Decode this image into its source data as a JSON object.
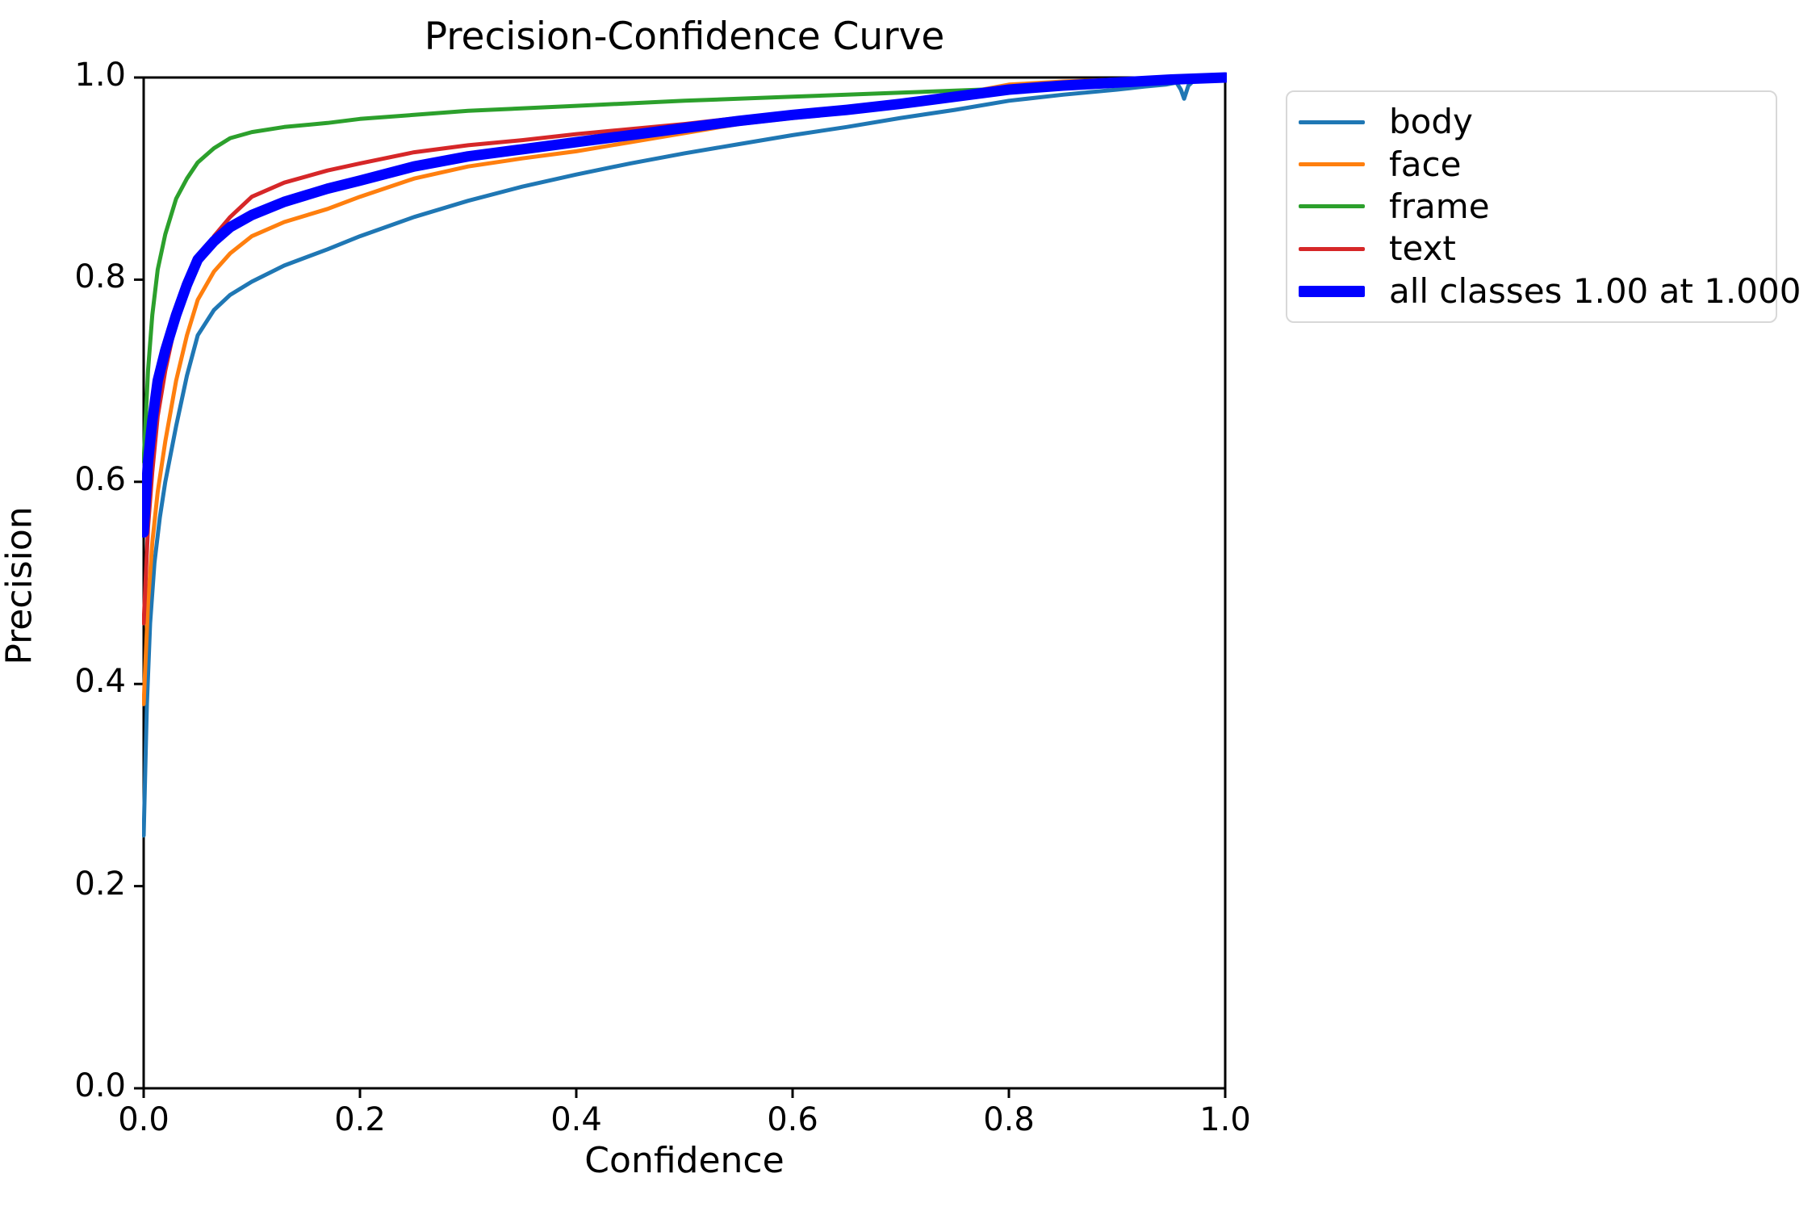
{
  "chart_data": {
    "type": "line",
    "title": "Precision-Confidence Curve",
    "xlabel": "Confidence",
    "ylabel": "Precision",
    "xlim": [
      0,
      1
    ],
    "ylim": [
      0,
      1
    ],
    "grid": false,
    "legend_position": "outside upper right",
    "x_ticks": [
      "0.0",
      "0.2",
      "0.4",
      "0.6",
      "0.8",
      "1.0"
    ],
    "y_ticks": [
      "0.0",
      "0.2",
      "0.4",
      "0.6",
      "0.8",
      "1.0"
    ],
    "series": [
      {
        "name": "body",
        "legend_label": "body",
        "color": "#1f77b4",
        "line_weight": "thin",
        "points": [
          [
            0.0,
            0.25
          ],
          [
            0.003,
            0.38
          ],
          [
            0.006,
            0.46
          ],
          [
            0.01,
            0.52
          ],
          [
            0.015,
            0.565
          ],
          [
            0.02,
            0.6
          ],
          [
            0.03,
            0.655
          ],
          [
            0.04,
            0.705
          ],
          [
            0.05,
            0.745
          ],
          [
            0.065,
            0.77
          ],
          [
            0.08,
            0.785
          ],
          [
            0.1,
            0.798
          ],
          [
            0.13,
            0.814
          ],
          [
            0.17,
            0.83
          ],
          [
            0.2,
            0.843
          ],
          [
            0.25,
            0.862
          ],
          [
            0.3,
            0.878
          ],
          [
            0.35,
            0.892
          ],
          [
            0.4,
            0.904
          ],
          [
            0.45,
            0.915
          ],
          [
            0.5,
            0.925
          ],
          [
            0.55,
            0.934
          ],
          [
            0.6,
            0.943
          ],
          [
            0.65,
            0.951
          ],
          [
            0.7,
            0.96
          ],
          [
            0.75,
            0.968
          ],
          [
            0.8,
            0.977
          ],
          [
            0.85,
            0.983
          ],
          [
            0.9,
            0.988
          ],
          [
            0.925,
            0.991
          ],
          [
            0.945,
            0.993
          ],
          [
            0.955,
            0.995
          ],
          [
            0.959,
            0.988
          ],
          [
            0.962,
            0.979
          ],
          [
            0.966,
            0.992
          ],
          [
            0.97,
            0.996
          ],
          [
            0.98,
            0.998
          ],
          [
            0.99,
            0.999
          ],
          [
            1.0,
            1.0
          ]
        ]
      },
      {
        "name": "face",
        "legend_label": "face",
        "color": "#ff7f0e",
        "line_weight": "thin",
        "points": [
          [
            0.0,
            0.38
          ],
          [
            0.004,
            0.48
          ],
          [
            0.008,
            0.54
          ],
          [
            0.013,
            0.59
          ],
          [
            0.02,
            0.64
          ],
          [
            0.03,
            0.7
          ],
          [
            0.04,
            0.745
          ],
          [
            0.05,
            0.78
          ],
          [
            0.065,
            0.808
          ],
          [
            0.08,
            0.826
          ],
          [
            0.1,
            0.843
          ],
          [
            0.13,
            0.857
          ],
          [
            0.17,
            0.87
          ],
          [
            0.2,
            0.882
          ],
          [
            0.25,
            0.9
          ],
          [
            0.3,
            0.912
          ],
          [
            0.35,
            0.92
          ],
          [
            0.4,
            0.927
          ],
          [
            0.45,
            0.936
          ],
          [
            0.5,
            0.945
          ],
          [
            0.55,
            0.954
          ],
          [
            0.6,
            0.96
          ],
          [
            0.65,
            0.965
          ],
          [
            0.7,
            0.973
          ],
          [
            0.75,
            0.983
          ],
          [
            0.8,
            0.993
          ],
          [
            0.85,
            0.996
          ],
          [
            0.9,
            0.998
          ],
          [
            0.95,
            0.999
          ],
          [
            1.0,
            1.0
          ]
        ]
      },
      {
        "name": "frame",
        "legend_label": "frame",
        "color": "#2ca02c",
        "line_weight": "thin",
        "points": [
          [
            0.0,
            0.62
          ],
          [
            0.004,
            0.71
          ],
          [
            0.008,
            0.765
          ],
          [
            0.013,
            0.81
          ],
          [
            0.02,
            0.845
          ],
          [
            0.03,
            0.88
          ],
          [
            0.04,
            0.9
          ],
          [
            0.05,
            0.916
          ],
          [
            0.065,
            0.93
          ],
          [
            0.08,
            0.94
          ],
          [
            0.1,
            0.946
          ],
          [
            0.13,
            0.951
          ],
          [
            0.17,
            0.955
          ],
          [
            0.2,
            0.959
          ],
          [
            0.25,
            0.963
          ],
          [
            0.3,
            0.967
          ],
          [
            0.4,
            0.972
          ],
          [
            0.5,
            0.977
          ],
          [
            0.6,
            0.981
          ],
          [
            0.7,
            0.985
          ],
          [
            0.8,
            0.989
          ],
          [
            0.9,
            0.994
          ],
          [
            0.95,
            0.997
          ],
          [
            1.0,
            1.0
          ]
        ]
      },
      {
        "name": "text",
        "legend_label": "text",
        "color": "#d62728",
        "line_weight": "thin",
        "points": [
          [
            0.0,
            0.46
          ],
          [
            0.004,
            0.555
          ],
          [
            0.008,
            0.61
          ],
          [
            0.013,
            0.665
          ],
          [
            0.02,
            0.71
          ],
          [
            0.03,
            0.76
          ],
          [
            0.04,
            0.792
          ],
          [
            0.05,
            0.816
          ],
          [
            0.065,
            0.843
          ],
          [
            0.08,
            0.862
          ],
          [
            0.1,
            0.882
          ],
          [
            0.13,
            0.896
          ],
          [
            0.17,
            0.908
          ],
          [
            0.2,
            0.915
          ],
          [
            0.25,
            0.926
          ],
          [
            0.3,
            0.933
          ],
          [
            0.35,
            0.938
          ],
          [
            0.4,
            0.944
          ],
          [
            0.45,
            0.949
          ],
          [
            0.5,
            0.954
          ],
          [
            0.55,
            0.96
          ],
          [
            0.6,
            0.965
          ],
          [
            0.65,
            0.969
          ],
          [
            0.7,
            0.975
          ],
          [
            0.75,
            0.981
          ],
          [
            0.8,
            0.987
          ],
          [
            0.85,
            0.992
          ],
          [
            0.9,
            0.995
          ],
          [
            0.95,
            0.998
          ],
          [
            1.0,
            1.0
          ]
        ]
      },
      {
        "name": "all classes",
        "legend_label": "all classes 1.00 at 1.000",
        "color": "#0000ff",
        "line_weight": "thick",
        "points": [
          [
            0.0,
            0.55
          ],
          [
            0.004,
            0.62
          ],
          [
            0.008,
            0.66
          ],
          [
            0.013,
            0.7
          ],
          [
            0.02,
            0.73
          ],
          [
            0.03,
            0.765
          ],
          [
            0.04,
            0.795
          ],
          [
            0.05,
            0.82
          ],
          [
            0.065,
            0.838
          ],
          [
            0.08,
            0.852
          ],
          [
            0.1,
            0.864
          ],
          [
            0.13,
            0.877
          ],
          [
            0.17,
            0.89
          ],
          [
            0.2,
            0.898
          ],
          [
            0.25,
            0.912
          ],
          [
            0.3,
            0.922
          ],
          [
            0.35,
            0.929
          ],
          [
            0.4,
            0.936
          ],
          [
            0.45,
            0.943
          ],
          [
            0.5,
            0.95
          ],
          [
            0.55,
            0.957
          ],
          [
            0.6,
            0.963
          ],
          [
            0.65,
            0.968
          ],
          [
            0.7,
            0.974
          ],
          [
            0.75,
            0.981
          ],
          [
            0.8,
            0.988
          ],
          [
            0.85,
            0.992
          ],
          [
            0.9,
            0.995
          ],
          [
            0.95,
            0.998
          ],
          [
            1.0,
            1.0
          ]
        ]
      }
    ]
  }
}
